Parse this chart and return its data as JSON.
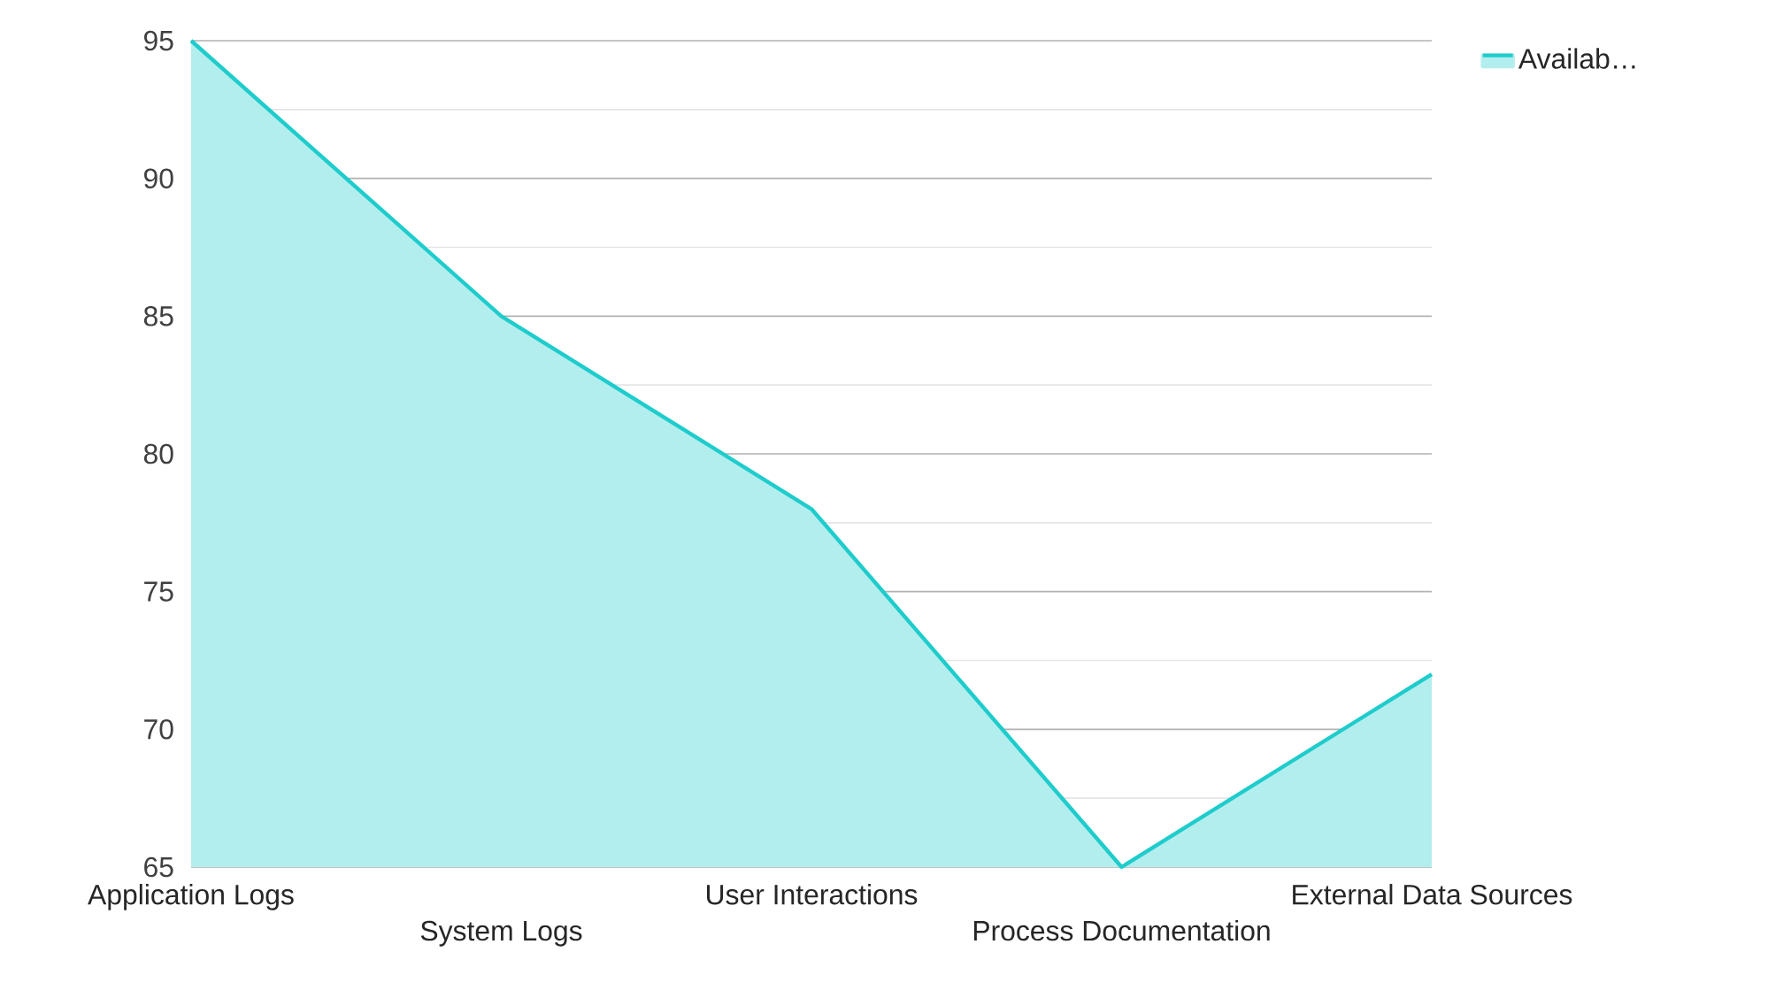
{
  "chart_data": {
    "type": "area",
    "categories": [
      "Application Logs",
      "System Logs",
      "User Interactions",
      "Process Documentation",
      "External Data Sources"
    ],
    "series": [
      {
        "name": "Availab…",
        "color": "#1fcccc",
        "values": [
          95,
          85,
          78,
          65,
          72
        ]
      }
    ],
    "ylim": [
      65,
      95
    ],
    "yticks": [
      65,
      70,
      75,
      80,
      85,
      90,
      95
    ],
    "grid": "y",
    "legend": "top right"
  }
}
